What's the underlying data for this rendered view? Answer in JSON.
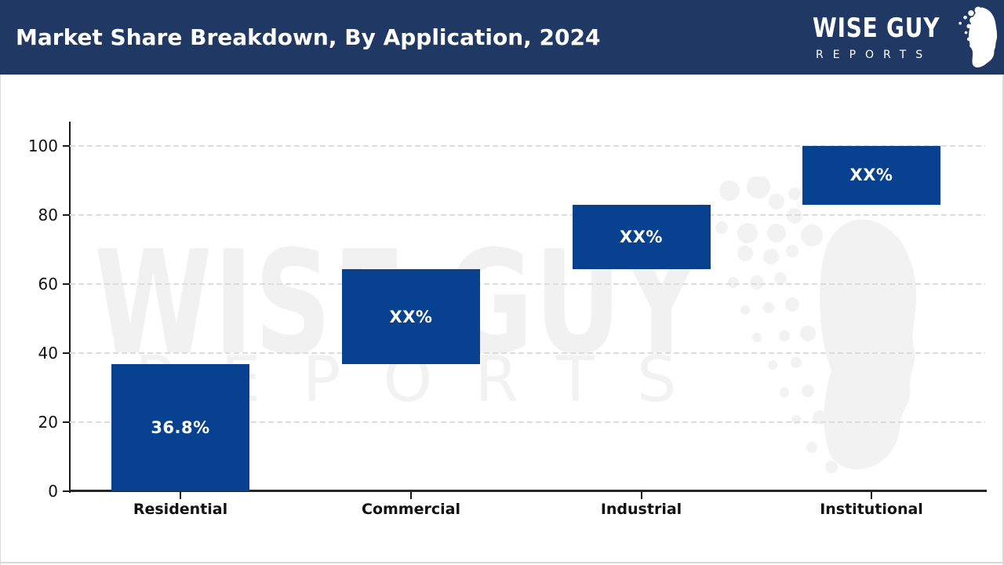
{
  "header": {
    "title": "Market Share Breakdown, By Application, 2024",
    "logo_line1": "WISE GUY",
    "logo_line2": "REPORTS"
  },
  "watermark": {
    "line1": "WISE GUY",
    "line2": "REPORTS"
  },
  "colors": {
    "header_bg": "#1f3864",
    "bar": "#07418f",
    "bar_label": "#ffffff",
    "gridline": "#dcdcdc",
    "axis": "#1a1a1a",
    "watermark": "#f1f1f1"
  },
  "chart_data": {
    "type": "bar",
    "variant": "waterfall",
    "title": "Market Share Breakdown, By Application, 2024",
    "categories": [
      "Residential",
      "Commercial",
      "Industrial",
      "Institutional"
    ],
    "segments": [
      {
        "category": "Residential",
        "start": 0,
        "end": 36.8,
        "label": "36.8%"
      },
      {
        "category": "Commercial",
        "start": 36.8,
        "end": 64.3,
        "label": "XX%"
      },
      {
        "category": "Industrial",
        "start": 64.3,
        "end": 83.0,
        "label": "XX%"
      },
      {
        "category": "Institutional",
        "start": 83.0,
        "end": 100.0,
        "label": "XX%"
      }
    ],
    "xlabel": "",
    "ylabel": "",
    "ylim": [
      0,
      106
    ],
    "yticks": [
      0,
      20,
      40,
      60,
      80,
      100
    ],
    "grid": "horizontal-dashed",
    "legend": "none",
    "bar_color": "#07418f",
    "value_label_color": "#ffffff"
  }
}
